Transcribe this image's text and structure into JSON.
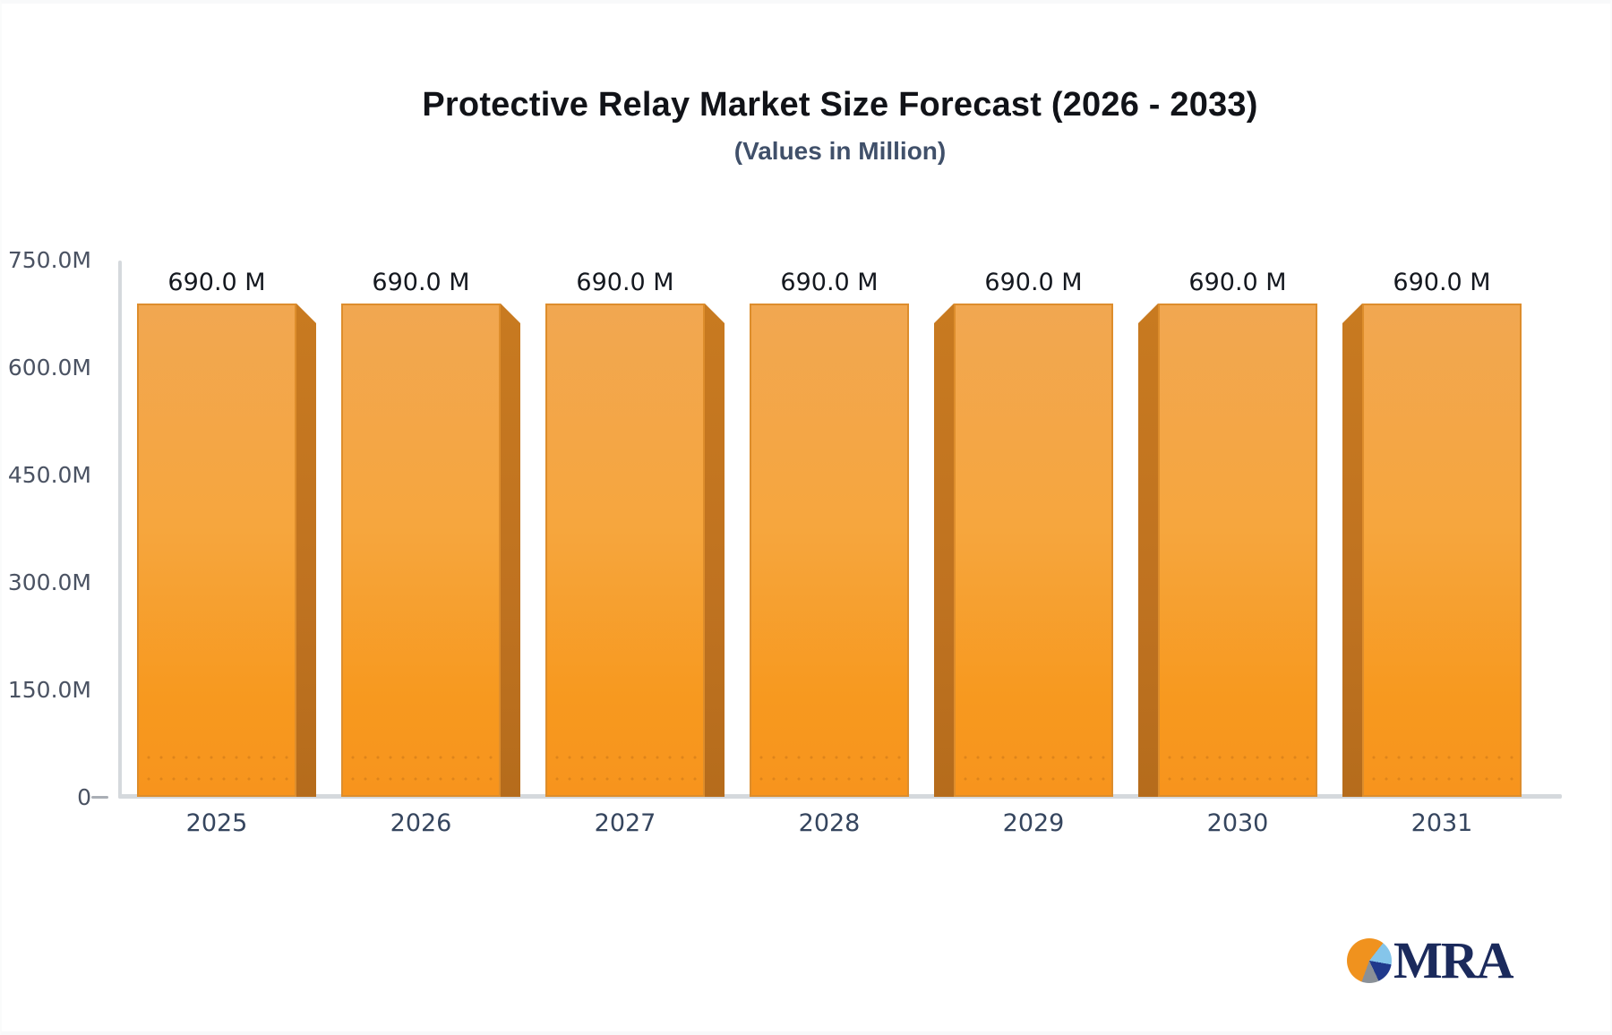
{
  "header": {
    "title": "Protective Relay Market Size Forecast (2026 - 2033)",
    "subtitle": "(Values in Million)"
  },
  "chart_data": {
    "type": "bar",
    "title": "Protective Relay Market Size Forecast (2026 - 2033)",
    "subtitle": "(Values in Million)",
    "categories": [
      "2025",
      "2026",
      "2027",
      "2028",
      "2029",
      "2030",
      "2031"
    ],
    "values": [
      690,
      690,
      690,
      690,
      690,
      690,
      690
    ],
    "value_labels": [
      "690.0 M",
      "690.0 M",
      "690.0 M",
      "690.0 M",
      "690.0 M",
      "690.0 M",
      "690.0 M"
    ],
    "y_ticks": [
      "750.0M",
      "600.0M",
      "450.0M",
      "300.0M",
      "150.0M",
      "0"
    ],
    "ylim": [
      0,
      750
    ],
    "units": "Million",
    "xlabel": "",
    "ylabel": "",
    "grid": false,
    "legend": false,
    "style": "3d-perspective-bars, side shading toward center bar",
    "colors": {
      "bar_top": "#f1a751",
      "bar_bottom": "#f7941d",
      "bar_stroke": "#dd8d2c",
      "bar_side_3d": "#bf7220",
      "axis_line": "#d5d9dd",
      "tick_text": "#4a5262",
      "category_text": "#35455e",
      "value_text": "#14181f"
    }
  },
  "logo": {
    "text": "MRA",
    "text_color": "#1b2a5c",
    "pie_colors": {
      "orange": "#f0921e",
      "light_blue": "#85c5ea",
      "navy": "#20398c",
      "gray": "#8a9097"
    }
  }
}
